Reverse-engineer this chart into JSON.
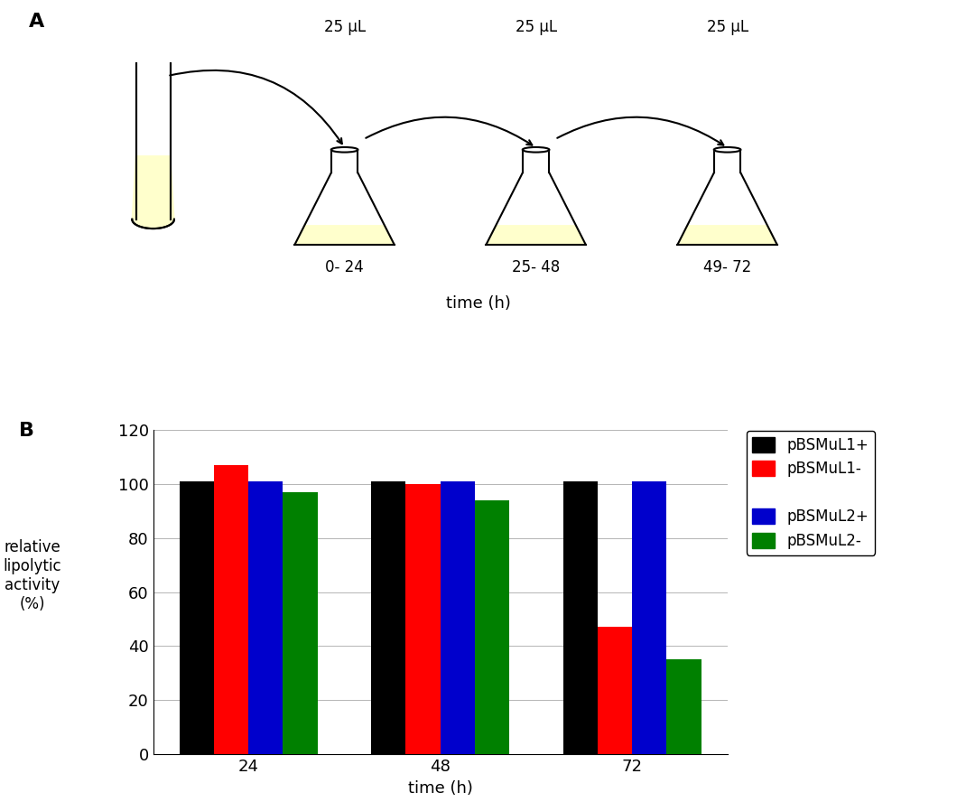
{
  "panel_b": {
    "time_points": [
      "24",
      "48",
      "72"
    ],
    "series": {
      "pBSMuL1+": {
        "color": "#000000",
        "values": [
          101,
          101,
          101
        ]
      },
      "pBSMuL1-": {
        "color": "#ff0000",
        "values": [
          107,
          100,
          47
        ]
      },
      "pBSMuL2+": {
        "color": "#0000cc",
        "values": [
          101,
          101,
          101
        ]
      },
      "pBSMuL2-": {
        "color": "#008000",
        "values": [
          97,
          94,
          35
        ]
      }
    },
    "ylabel_lines": [
      "relative",
      "lipolytic",
      "activity",
      "(%)"
    ],
    "xlabel": "time (h)",
    "ylim": [
      0,
      120
    ],
    "yticks": [
      0,
      20,
      40,
      60,
      80,
      100,
      120
    ],
    "bar_width": 0.18
  },
  "panel_a": {
    "flask_labels": [
      "0- 24",
      "25- 48",
      "49- 72"
    ],
    "volume_labels": [
      "25 μL",
      "25 μL",
      "25 μL"
    ],
    "time_label": "time (h)"
  },
  "figure": {
    "bg_color": "#ffffff"
  }
}
